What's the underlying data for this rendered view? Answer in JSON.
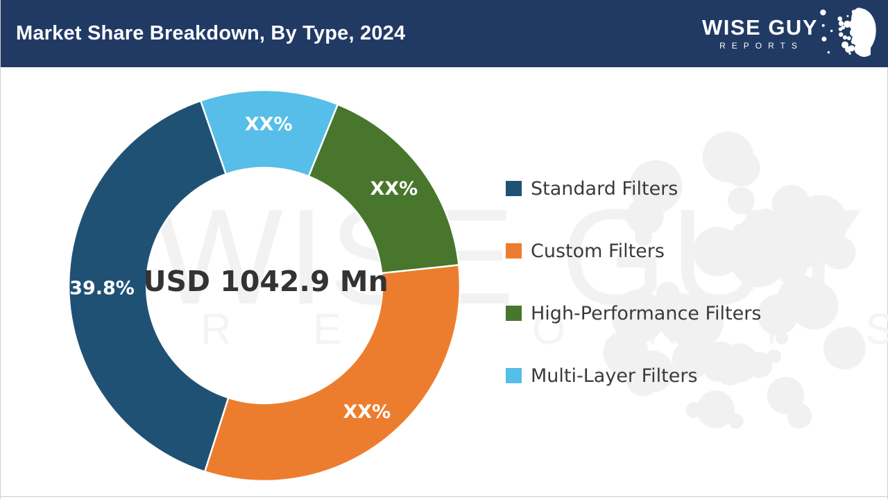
{
  "header": {
    "title": "Market Share Breakdown, By Type, 2024",
    "logo": {
      "name": "WISE GUY",
      "subtitle": "REPORTS"
    }
  },
  "watermark": {
    "line1": "WISE GUY",
    "line2": "R E P O R T S"
  },
  "chart_data": {
    "type": "pie",
    "subtype": "donut",
    "title": "Market Share Breakdown, By Type, 2024",
    "center_label": "USD 1042.9 Mn",
    "start_angle_deg": 109,
    "direction": "counterclockwise",
    "legend_position": "right",
    "series": [
      {
        "name": "Standard Filters",
        "value_pct": 39.8,
        "display_label": "39.8%",
        "color": "#1F5174"
      },
      {
        "name": "Custom Filters",
        "value_pct": 31.6,
        "display_label": "XX%",
        "color": "#ED7D2E"
      },
      {
        "name": "High-Performance Filters",
        "value_pct": 17.2,
        "display_label": "XX%",
        "color": "#48762C"
      },
      {
        "name": "Multi-Layer Filters",
        "value_pct": 11.4,
        "display_label": "XX%",
        "color": "#56BEE8"
      }
    ]
  },
  "colors": {
    "header_bg": "#203A64",
    "standard": "#1F5174",
    "custom": "#ED7D2E",
    "high_performance": "#48762C",
    "multi_layer": "#56BEE8"
  }
}
